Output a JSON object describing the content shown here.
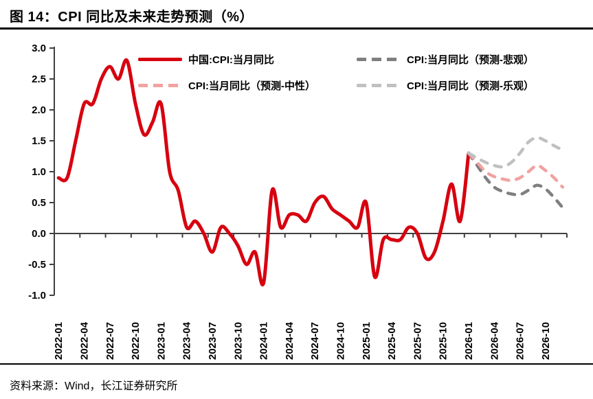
{
  "header": {
    "title": "图 14：CPI 同比及未来走势预测（%）"
  },
  "footer": {
    "source": "资料来源：Wind，长江证券研究所"
  },
  "chart_data": {
    "type": "line",
    "title": "图 14：CPI 同比及未来走势预测（%）",
    "unit": "%",
    "ylim": [
      -1.0,
      3.0
    ],
    "y_ticks": [
      "3.0",
      "2.5",
      "2.0",
      "1.5",
      "1.0",
      "0.5",
      "0.0",
      "-0.5",
      "-1.0"
    ],
    "x_tick_labels": [
      "2022-01",
      "2022-04",
      "2022-07",
      "2022-10",
      "2023-01",
      "2023-04",
      "2023-07",
      "2023-10",
      "2024-01",
      "2024-04",
      "2024-07",
      "2024-10",
      "2025-01",
      "2025-04",
      "2025-07",
      "2025-10",
      "2026-01",
      "2026-04",
      "2026-07",
      "2026-10"
    ],
    "x_range_months": [
      "2022-01",
      "2026-12"
    ],
    "grid": "off",
    "legend_position": "top-inside",
    "axis_color": "#404040",
    "series": [
      {
        "name": "中国:CPI:当月同比",
        "style": "solid",
        "color": "#D7000F",
        "start": "2022-01",
        "values": [
          0.9,
          0.9,
          1.5,
          2.1,
          2.1,
          2.5,
          2.7,
          2.5,
          2.8,
          2.1,
          1.6,
          1.8,
          2.1,
          1.0,
          0.7,
          0.1,
          0.2,
          0.0,
          -0.3,
          0.1,
          0.0,
          -0.2,
          -0.5,
          -0.3,
          -0.8,
          0.7,
          0.1,
          0.3,
          0.3,
          0.2,
          0.5,
          0.6,
          0.4,
          0.3,
          0.2,
          0.1,
          0.5,
          -0.7,
          -0.1,
          -0.1,
          -0.1,
          0.1,
          0.0,
          -0.4,
          -0.3,
          0.2,
          0.8,
          0.2,
          1.3
        ]
      },
      {
        "name": "CPI:当月同比（预测-悲观）",
        "style": "dashed",
        "color": "#7F7F7F",
        "start": "2026-01",
        "values": [
          1.3,
          1.1,
          0.9,
          0.75,
          0.68,
          0.64,
          0.63,
          0.7,
          0.78,
          0.72,
          0.58,
          0.42
        ]
      },
      {
        "name": "CPI:当月同比（预测-中性）",
        "style": "dashed",
        "color": "#F2A2A0",
        "start": "2026-01",
        "values": [
          1.3,
          1.15,
          1.0,
          0.92,
          0.88,
          0.86,
          0.9,
          1.0,
          1.1,
          1.02,
          0.9,
          0.75
        ]
      },
      {
        "name": "CPI:当月同比（预测-乐观）",
        "style": "dashed",
        "color": "#C0C0C0",
        "start": "2026-01",
        "values": [
          1.3,
          1.22,
          1.15,
          1.1,
          1.08,
          1.15,
          1.3,
          1.48,
          1.55,
          1.5,
          1.42,
          1.35
        ]
      }
    ],
    "legend": [
      {
        "label": "中国:CPI:当月同比",
        "style": "solid",
        "color": "#D7000F"
      },
      {
        "label": "CPI:当月同比（预测-悲观）",
        "style": "dashed",
        "color": "#7F7F7F"
      },
      {
        "label": "CPI:当月同比（预测-中性）",
        "style": "dashed",
        "color": "#F2A2A0"
      },
      {
        "label": "CPI:当月同比（预测-乐观）",
        "style": "dashed",
        "color": "#C0C0C0"
      }
    ]
  }
}
